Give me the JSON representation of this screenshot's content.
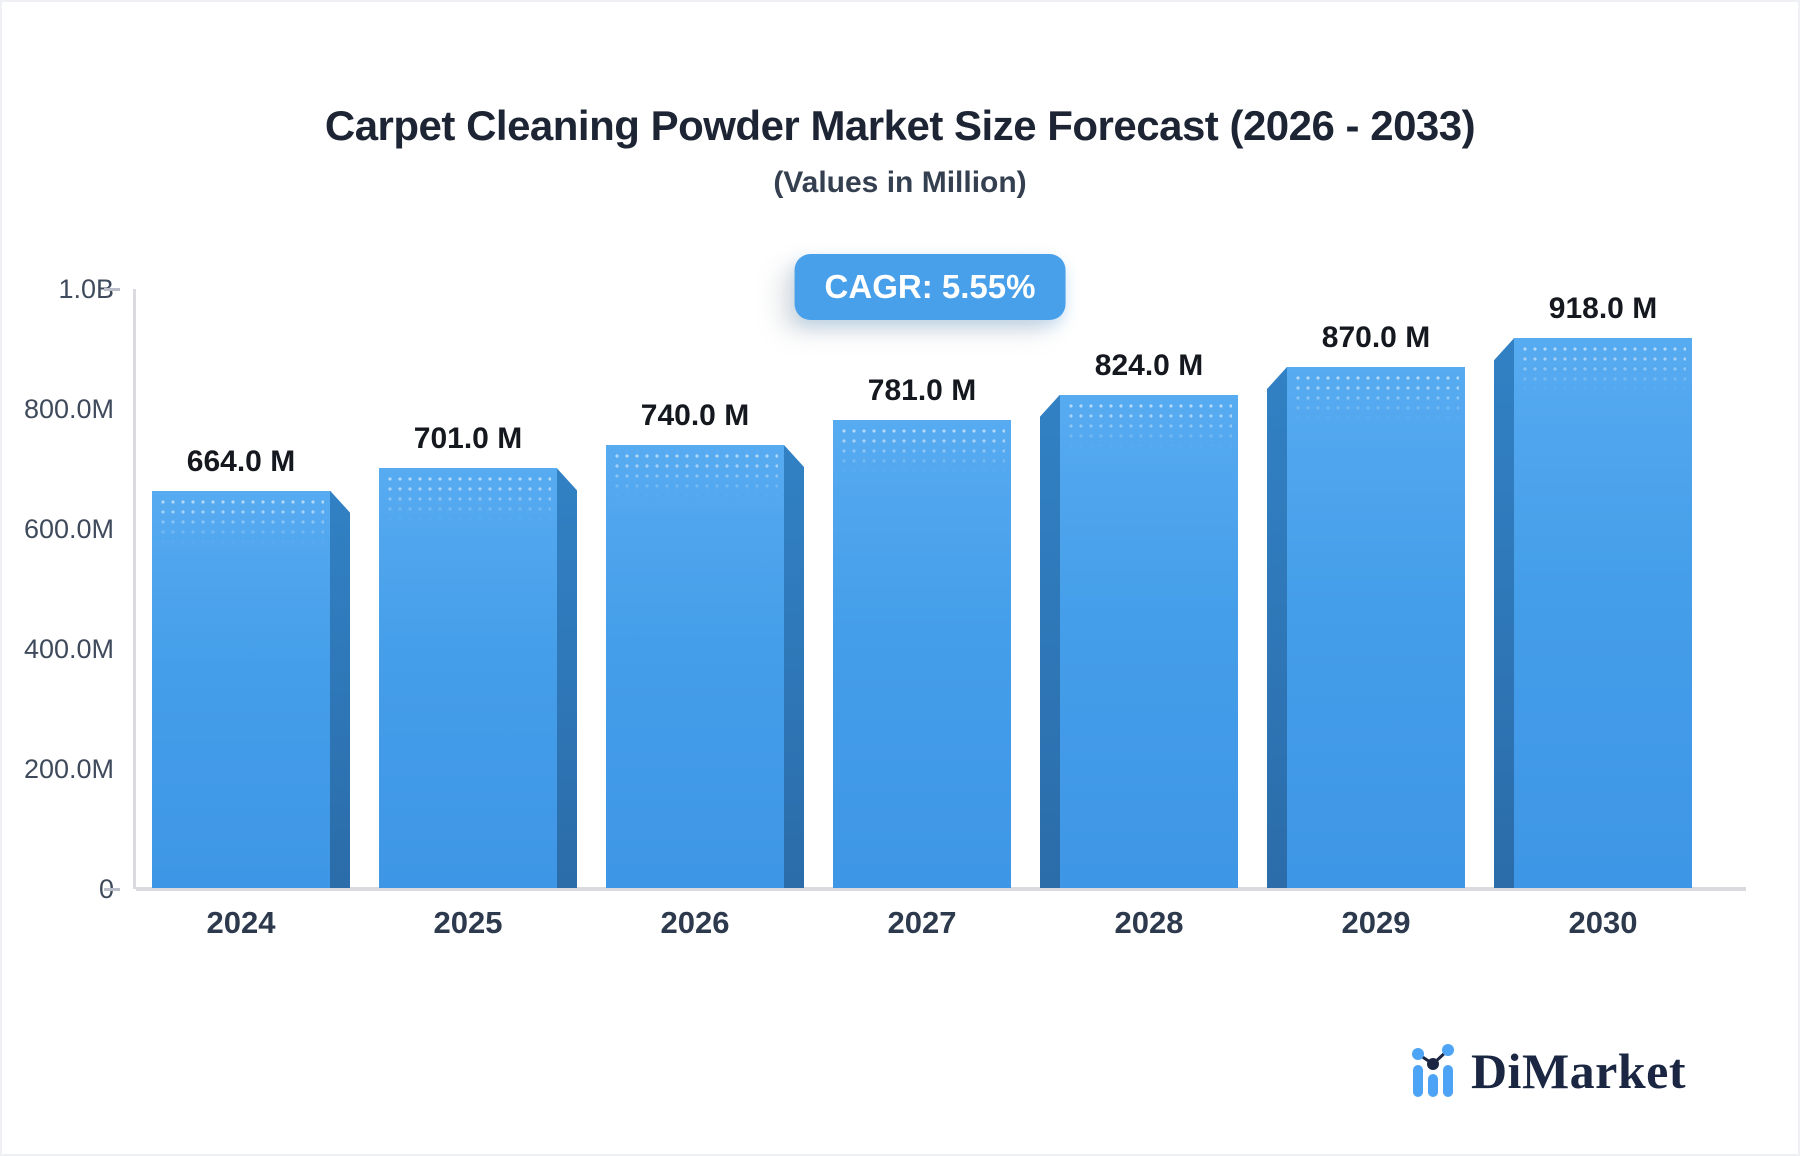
{
  "frame": {
    "title": "Carpet Cleaning Powder Market Size Forecast (2026 - 2033)",
    "subtitle": "(Values in Million)",
    "cagr_badge": "CAGR: 5.55%"
  },
  "chart_data": {
    "type": "bar",
    "title": "Carpet Cleaning Powder Market Size Forecast (2026 - 2033)",
    "subtitle": "(Values in Million)",
    "annotation": "CAGR: 5.55%",
    "categories": [
      "2024",
      "2025",
      "2026",
      "2027",
      "2028",
      "2029",
      "2030"
    ],
    "values": [
      664.0,
      701.0,
      740.0,
      781.0,
      824.0,
      870.0,
      918.0
    ],
    "bar_labels": [
      "664.0 M",
      "701.0 M",
      "740.0 M",
      "781.0 M",
      "824.0 M",
      "870.0 M",
      "918.0 M"
    ],
    "ylim": [
      0,
      1000
    ],
    "ytick_values": [
      0,
      200,
      400,
      600,
      800,
      1000
    ],
    "ytick_labels": [
      "0",
      "200.0M",
      "400.0M",
      "600.0M",
      "800.0M",
      "1.0B"
    ],
    "tick_dash_values": [
      0,
      1000
    ],
    "grid": false,
    "legend": false,
    "xlabel": "",
    "ylabel": ""
  },
  "branding": {
    "name": "DiMarket"
  },
  "colors": {
    "bar_face_top": "#57abf1",
    "bar_face_bottom": "#3e96e6",
    "bar_side": "#2e75b5",
    "badge_bg": "#49a0ea",
    "badge_text": "#ffffff",
    "title_text": "#1d2534",
    "subtitle_text": "#343f50",
    "xlabel_text": "#2d3a4d",
    "ylabel_text": "#3f4b5c",
    "axis": "#d9dbe0",
    "logo_text": "#1b2742",
    "logo_blue": "#4da3f5"
  }
}
